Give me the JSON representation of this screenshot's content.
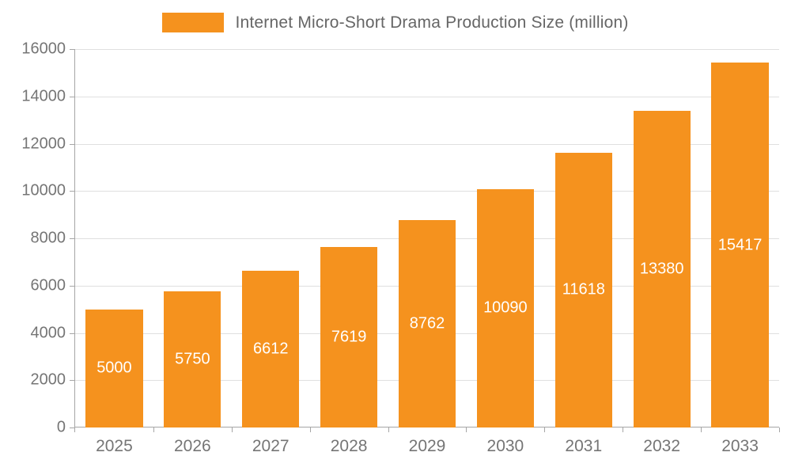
{
  "chart_data": {
    "type": "bar",
    "title": "Internet Micro-Short Drama Production Size (million)",
    "categories": [
      "2025",
      "2026",
      "2027",
      "2028",
      "2029",
      "2030",
      "2031",
      "2032",
      "2033"
    ],
    "values": [
      5000,
      5750,
      6612,
      7619,
      8762,
      10090,
      11618,
      13380,
      15417
    ],
    "xlabel": "",
    "ylabel": "",
    "ylim": [
      0,
      16000
    ],
    "ytick_step": 2000,
    "yticks": [
      0,
      2000,
      4000,
      6000,
      8000,
      10000,
      12000,
      14000,
      16000
    ],
    "grid": true,
    "legend_position": "top",
    "bar_color": "#F5921E",
    "value_label_color": "#FFFFFF",
    "axis_text_color": "#757575",
    "grid_color": "#E0E0E0",
    "axis_line_color": "#A6A6A6"
  },
  "legend": {
    "label": "Internet Micro-Short Drama Production Size (million)"
  }
}
